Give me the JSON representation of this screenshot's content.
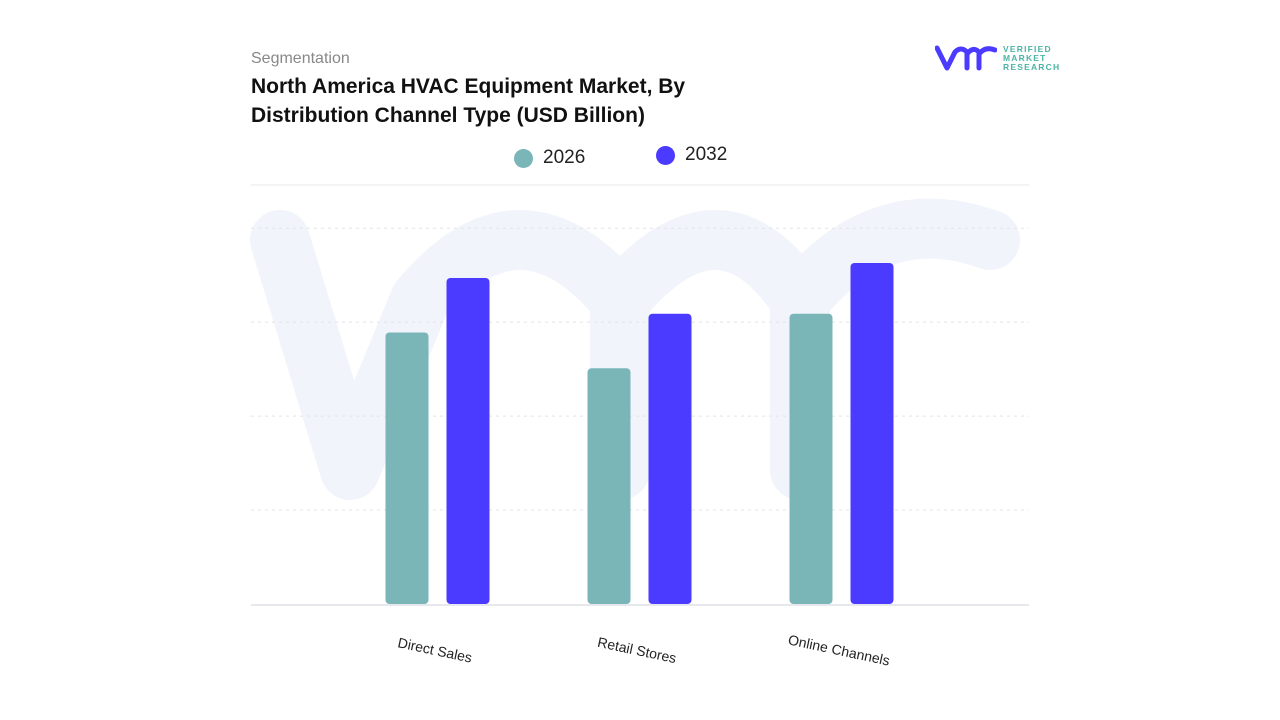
{
  "header": {
    "segment_label": "Segmentation",
    "title": "North America HVAC Equipment Market, By Distribution Channel Type (USD Billion)"
  },
  "logo": {
    "text": [
      "VERIFIED",
      "MARKET",
      "RESEARCH"
    ],
    "mark": "vmr"
  },
  "colors": {
    "2026": "#7ab5b8",
    "2032": "#4b3aff",
    "watermark": "#f1f4fb"
  },
  "chart_data": {
    "type": "bar",
    "title": "North America HVAC Equipment Market, By Distribution Channel Type (USD Billion)",
    "categories": [
      "Direct Sales",
      "Retail Stores",
      "Online Channels"
    ],
    "series": [
      {
        "name": "2026",
        "values": [
          2.89,
          2.51,
          3.09
        ],
        "color": "#7ab5b8"
      },
      {
        "name": "2032",
        "values": [
          3.47,
          3.09,
          3.63
        ],
        "color": "#4b3aff"
      }
    ],
    "ylim": [
      0,
      4.46
    ],
    "grid": true,
    "legend": "top-center",
    "xlabel": "",
    "ylabel": ""
  }
}
